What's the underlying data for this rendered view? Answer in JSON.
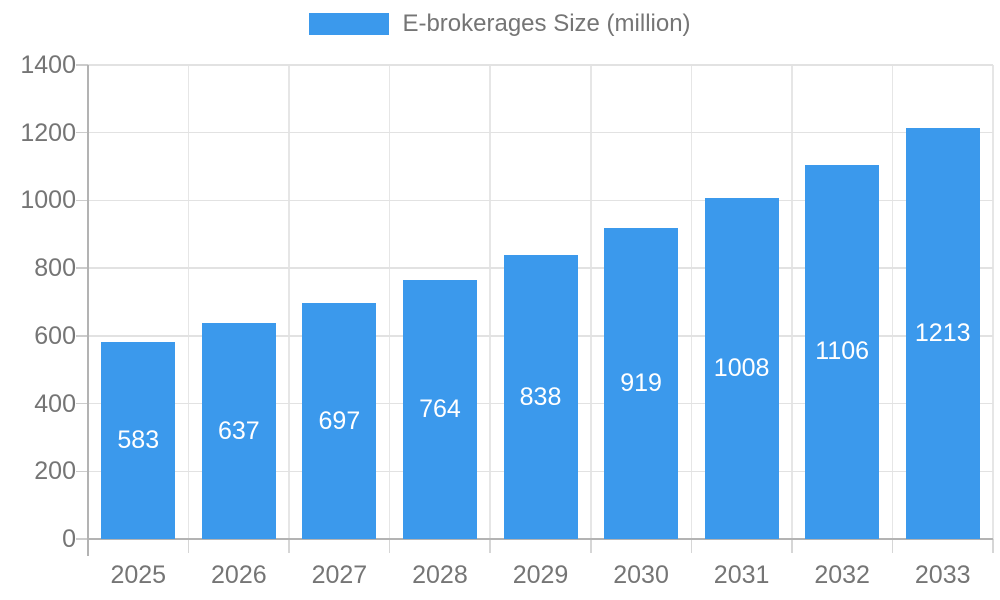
{
  "legend": {
    "label": "E-brokerages Size (million)"
  },
  "chart_data": {
    "type": "bar",
    "title": "E-brokerages Size (million)",
    "categories": [
      "2025",
      "2026",
      "2027",
      "2028",
      "2029",
      "2030",
      "2031",
      "2032",
      "2033"
    ],
    "series": [
      {
        "name": "E-brokerages Size (million)",
        "values": [
          583,
          637,
          697,
          764,
          838,
          919,
          1008,
          1106,
          1213
        ]
      }
    ],
    "values": [
      583,
      637,
      697,
      764,
      838,
      919,
      1008,
      1106,
      1213
    ],
    "bar_value_labels": [
      "583",
      "637",
      "697",
      "764",
      "838",
      "919",
      "1008",
      "1106",
      "1213"
    ],
    "xlabel": "",
    "ylabel": "",
    "ylim": [
      0,
      1400
    ],
    "yticks": [
      0,
      200,
      400,
      600,
      800,
      1000,
      1200,
      1400
    ],
    "ytick_labels": [
      "0",
      "200",
      "400",
      "600",
      "800",
      "1000",
      "1200",
      "1400"
    ],
    "grid": true,
    "legend_position": "top",
    "colors": {
      "bar": "#3b99ec",
      "bar_label": "#ffffff",
      "axis_text": "#757575",
      "h_gridline": "#e2e2e2",
      "v_gridline": "#e6e6e6",
      "axis_line": "#b3b3b3"
    }
  }
}
